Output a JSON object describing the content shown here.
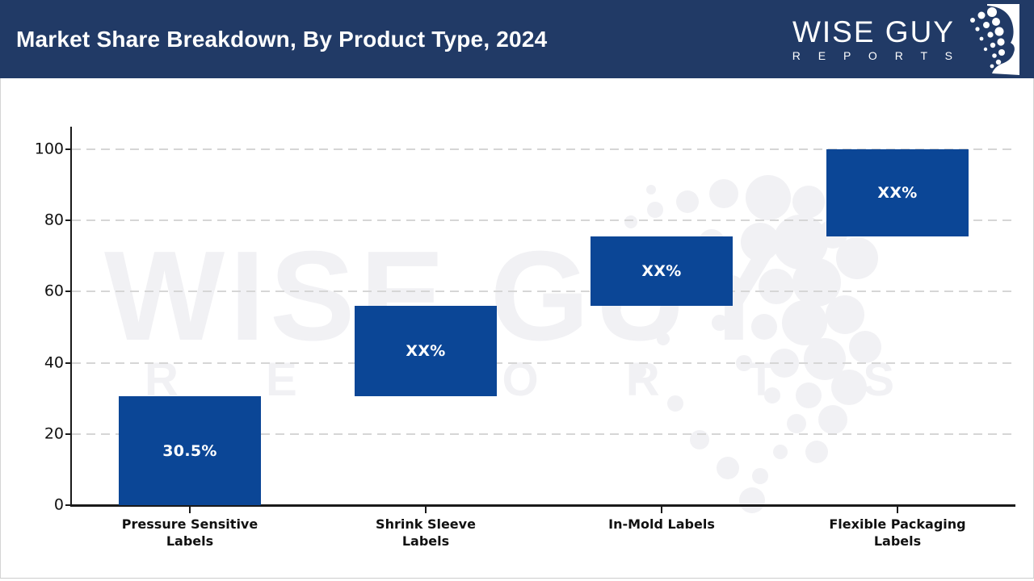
{
  "header": {
    "title": "Market Share Breakdown, By Product Type, 2024",
    "logo": {
      "line1": "WISE GUY",
      "line2": "R E P O R T S"
    }
  },
  "watermark": {
    "line1": "WISE GUY",
    "line2": "R E P O R T S"
  },
  "colors": {
    "header_bg": "#213a66",
    "bar": "#0b4696",
    "grid": "#d6d6d6",
    "axis": "#1a1a1a",
    "bar_label": "#ffffff",
    "watermark": "#f1f1f4"
  },
  "chart_data": {
    "type": "bar",
    "subtype": "floating-waterfall",
    "title": "Market Share Breakdown, By Product Type, 2024",
    "categories": [
      "Pressure Sensitive Labels",
      "Shrink Sleeve Labels",
      "In-Mold Labels",
      "Flexible Packaging Labels"
    ],
    "categories_display": [
      "Pressure Sensitive\nLabels",
      "Shrink Sleeve\nLabels",
      "In-Mold Labels",
      "Flexible Packaging\nLabels"
    ],
    "series": [
      {
        "name": "Market Share (%)",
        "segments": [
          {
            "category": "Pressure Sensitive Labels",
            "start": 0,
            "end": 30.5,
            "label": "30.5%"
          },
          {
            "category": "Shrink Sleeve Labels",
            "start": 30.5,
            "end": 56,
            "label": "XX%"
          },
          {
            "category": "In-Mold Labels",
            "start": 56,
            "end": 75.5,
            "label": "XX%"
          },
          {
            "category": "Flexible Packaging Labels",
            "start": 75.5,
            "end": 100,
            "label": "XX%"
          }
        ]
      }
    ],
    "xlabel": "",
    "ylabel": "",
    "ylim": [
      0,
      100
    ],
    "yticks": [
      0,
      20,
      40,
      60,
      80,
      100
    ],
    "grid": "horizontal-dashed",
    "legend": "none",
    "value_labels": "inside-center"
  }
}
